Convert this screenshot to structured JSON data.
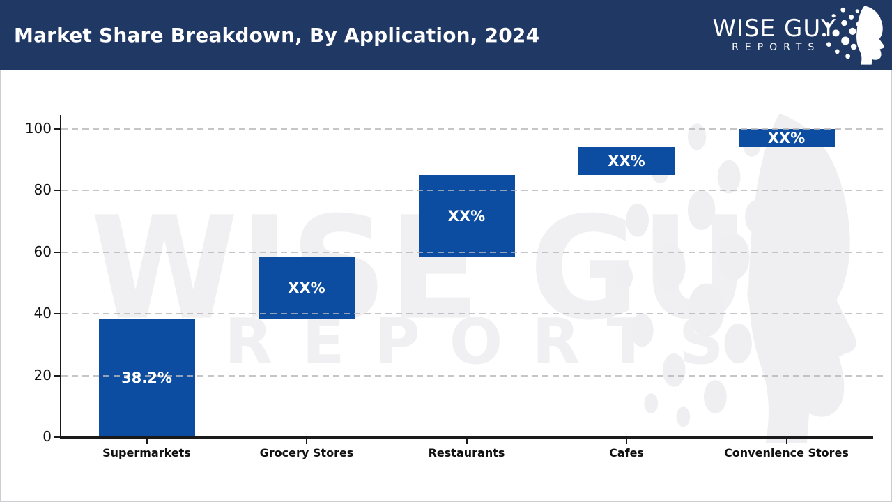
{
  "header": {
    "title": "Market Share Breakdown, By Application, 2024",
    "logo": {
      "line1": "WISE GUY",
      "line2": "REPORTS"
    }
  },
  "watermark": {
    "line1": "WISE GUY",
    "line2": "REPORTS"
  },
  "colors": {
    "header_bg": "#203864",
    "bar_blue": "#0c4da1",
    "grid_gray": "#c8c8c8",
    "axis_black": "#1a1a1a",
    "watermark_gray": "#f0f0f2"
  },
  "chart_data": {
    "type": "bar",
    "subtype": "waterfall-range-bars",
    "title": "Market Share Breakdown, By Application, 2024",
    "categories": [
      "Supermarkets",
      "Grocery Stores",
      "Restaurants",
      "Cafes",
      "Convenience Stores"
    ],
    "segments": [
      {
        "start": 0,
        "end": 38.2,
        "label": "38.2%"
      },
      {
        "start": 38.2,
        "end": 58.5,
        "label": "XX%"
      },
      {
        "start": 58.5,
        "end": 85.0,
        "label": "XX%"
      },
      {
        "start": 85.0,
        "end": 94.0,
        "label": "XX%"
      },
      {
        "start": 94.0,
        "end": 100.0,
        "label": "XX%"
      }
    ],
    "xlabel": "",
    "ylabel": "",
    "ylim": [
      0,
      105
    ],
    "yticks": [
      0,
      20,
      40,
      60,
      80,
      100
    ],
    "grid": "horizontal dashed, drawn over bars",
    "legend": "none",
    "bar_color": "#0c4da1"
  }
}
